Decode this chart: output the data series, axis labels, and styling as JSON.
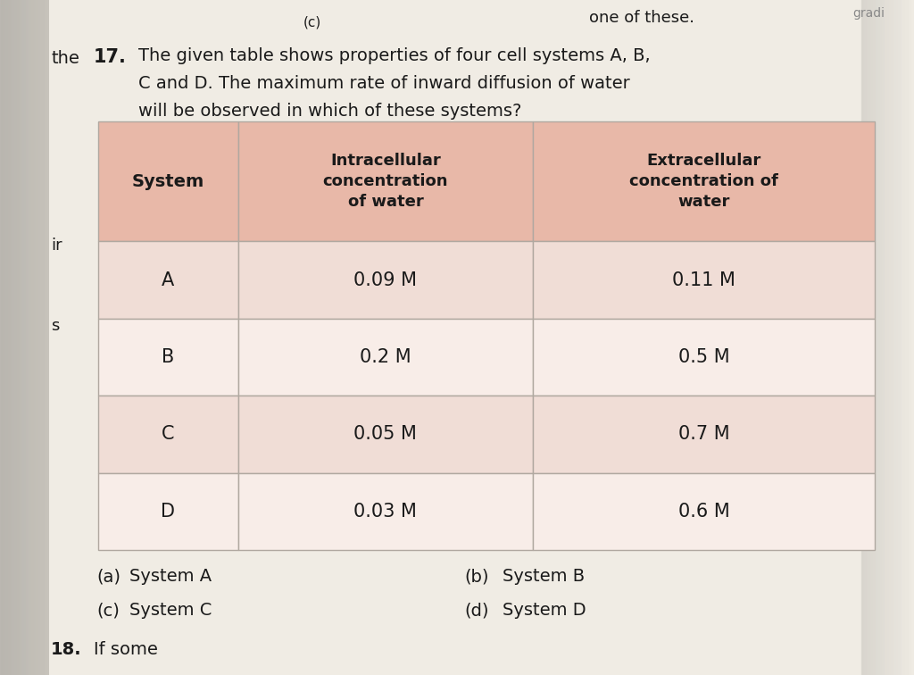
{
  "top_text_left": "(c)",
  "top_text_right": "one of these.",
  "top_right_small": "gradi",
  "side_left_top": "the",
  "side_left_mid1": "ir",
  "side_left_mid2": "s",
  "question_num": "17.",
  "question_lines": [
    "The given table shows properties of four cell systems A, B,",
    "C and D. The maximum rate of inward diffusion of water",
    "will be observed in which of these systems?"
  ],
  "col_headers": [
    "System",
    "Intracellular\nconcentration\nof water",
    "Extracellular\nconcentration of\nwater"
  ],
  "rows": [
    [
      "A",
      "0.09 M",
      "0.11 M"
    ],
    [
      "B",
      "0.2 M",
      "0.5 M"
    ],
    [
      "C",
      "0.05 M",
      "0.7 M"
    ],
    [
      "D",
      "0.03 M",
      "0.6 M"
    ]
  ],
  "options": [
    [
      "(a)",
      "System A",
      "(b)",
      "System B"
    ],
    [
      "(c)",
      "System C",
      "(d)",
      "System D"
    ]
  ],
  "footer": "18.  If some",
  "page_bg": "#f0ece4",
  "page_bg_left": "#c8c4bc",
  "header_bg": "#e8b8a8",
  "row_bg_light": "#f0ddd6",
  "row_bg_lighter": "#f8ede8",
  "table_border": "#b0a8a0",
  "text_dark": "#1a1a1a",
  "text_mid": "#2a2a2a"
}
